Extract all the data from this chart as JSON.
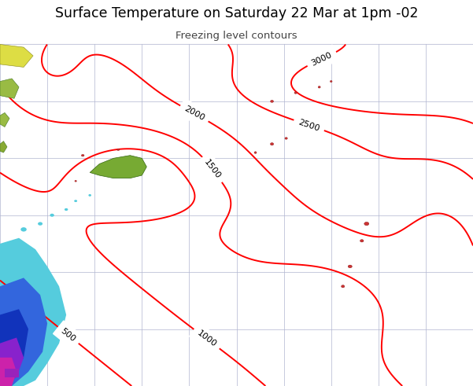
{
  "title": "Surface Temperature on Saturday 22 Mar at 1pm -02",
  "subtitle": "Freezing level contours",
  "map_bg": "#ccd0e8",
  "title_fontsize": 12.5,
  "subtitle_fontsize": 9.5,
  "contour_color": "red",
  "contour_linewidth": 1.4,
  "contour_label_fontsize": 8,
  "grid_color": "#b0b5d0",
  "grid_linewidth": 0.5,
  "xlim": [
    -42,
    -22
  ],
  "ylim": [
    -62,
    -50
  ],
  "figsize": [
    6.01,
    4.91
  ],
  "dpi": 100
}
